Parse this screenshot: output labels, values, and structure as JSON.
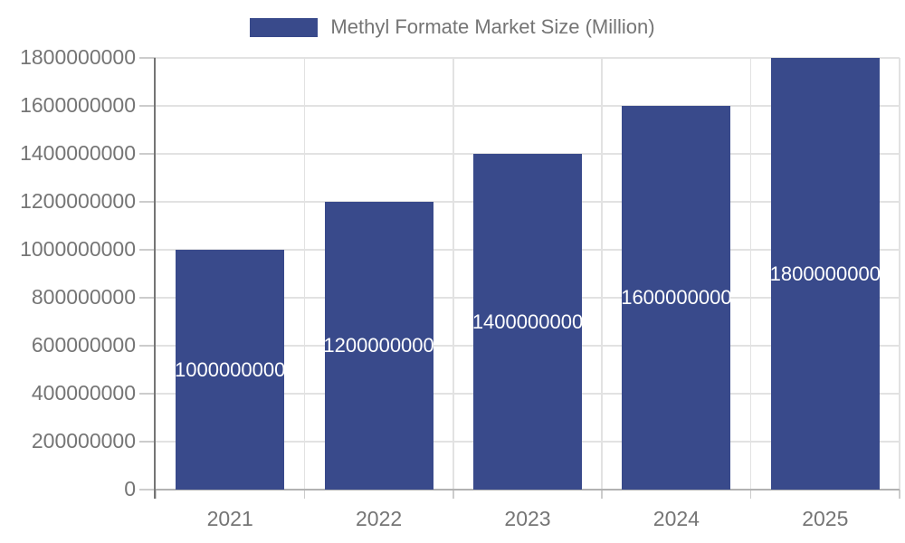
{
  "legend": {
    "label": "Methyl Formate Market Size (Million)",
    "swatch_color": "#394a8b"
  },
  "chart_data": {
    "type": "bar",
    "title": "Methyl Formate Market Size (Million)",
    "categories": [
      "2021",
      "2022",
      "2023",
      "2024",
      "2025"
    ],
    "series": [
      {
        "name": "Methyl Formate Market Size (Million)",
        "values": [
          1000000000,
          1200000000,
          1400000000,
          1600000000,
          1800000000
        ]
      }
    ],
    "bar_labels": [
      "1000000000",
      "1200000000",
      "1400000000",
      "1600000000",
      "1800000000"
    ],
    "xlabel": "",
    "ylabel": "",
    "ylim": [
      0,
      1800000000
    ],
    "yticks": [
      0,
      200000000,
      400000000,
      600000000,
      800000000,
      1000000000,
      1200000000,
      1400000000,
      1600000000,
      1800000000
    ],
    "ytick_labels": [
      "0",
      "200000000",
      "400000000",
      "600000000",
      "800000000",
      "1000000000",
      "1200000000",
      "1400000000",
      "1600000000",
      "1800000000"
    ],
    "grid": true,
    "legend_position": "top-center",
    "colors": {
      "bar": "#394a8b",
      "bar_label_text": "#ffffff",
      "axis_text": "#757575",
      "gridline": "#e2e2e2",
      "y_axis_line": "#757575",
      "x_axis_line": "#b2b2b2",
      "tick": "#cccccc",
      "background": "#ffffff"
    }
  }
}
